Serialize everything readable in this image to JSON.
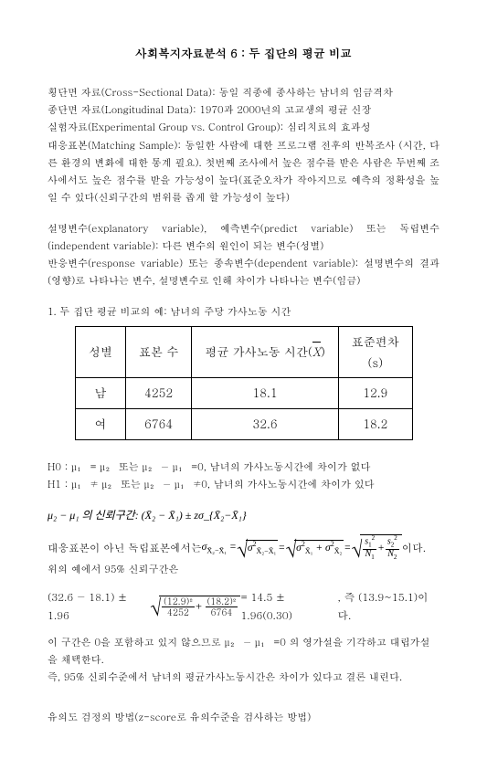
{
  "title": "사회복지자료분석 6 : 두 집단의 평균 비교",
  "defs": {
    "cross": "횡단면 자료(Cross-Sectional Data): 동일 직종에 종사하는 남녀의 임금격차",
    "long": "종단면 자료(Longitudinal Data): 1970과 2000년의 고교생의 평균 신장",
    "exp": "실험자료(Experimental Group vs. Control Group): 심리치료의 효과성",
    "match": "대응표본(Matching Sample): 동일한 사람에 대한 프로그램 전후의 반복조사 (시간, 다른 환경의 변화에 대한 통계 필요). 첫번째 조사에서 높은 점수를 받은 사람은 두번째 조사에서도 높은 점수를 받을 가능성이 높다(표준오차가 작아지므로 예측의 정확성을 높일 수 있다(신뢰구간의 범위를 좁게 할 가능성이 높다)"
  },
  "vars": {
    "explan": "설명변수(explanatory variable), 예측변수(predict variable) 또는 독립변수(independent variable): 다른 변수의 원인이 되는 변수(성별)",
    "resp": "반응변수(response variable) 또는 종속변수(dependent variable): 설명변수의 결과(영향)로 나타나는 변수, 설명변수로 인해 차이가 나타나는 변수(임금)"
  },
  "section1": "1. 두 집단 평균 비교의 예: 남녀의 주당 가사노동 시간",
  "table": {
    "headers": {
      "col1": "성별",
      "col2": "표본 수",
      "col3_prefix": "평균 가사노동 시간(",
      "col3_suffix": ")",
      "col4": "표준편차\n(s)"
    },
    "rows": [
      {
        "g": "남",
        "n": "4252",
        "mean": "18.1",
        "sd": "12.9"
      },
      {
        "g": "여",
        "n": "6764",
        "mean": "32.6",
        "sd": "18.2"
      }
    ]
  },
  "h0": "H0 : μ₁ = μ₂ 또는 μ₂ − μ₁ =0, 남녀의 가사노동시간에 차이가 없다",
  "h1": "H1 : μ₁ ≠ μ₂ 또는 μ₂ − μ₁ ≠0, 남녀의 가사노동시간에 차이가 있다",
  "ci": {
    "lead": "μ₂ − μ₁ 의 신뢰구간:  (X̄₂ − X̄₁) ± zσ_{X̄₂−X̄₁}",
    "indep_lead": "대응표본이 아닌 독립표본에서는  ",
    "indep_tail": "  이다.",
    "ex_lead": "위의 예에서 95% 신뢰구간은",
    "calc_prefix": "(32.6 − 18.1) ± 1.96",
    "frac1_num": "(12.9)²",
    "frac1_den": "4252",
    "frac2_num": "(18.2)²",
    "frac2_den": "6764",
    "calc_mid": "= 14.5 ± 1.96(0.30)",
    "calc_suffix": ", 즉 (13.9~15.1)이다.",
    "concl1": "이 구간은 0을 포함하고 있지 않으므로 μ₂ − μ₁ =0 의 영가설을 기각하고 대립가설을 채택한다.",
    "concl2": "즉, 95% 신뢰수준에서 남녀의 평균가사노동시간은 차이가 있다고 결론 내린다."
  },
  "zscore": "유의도 검정의 방법(z-score로 유의수준을 검사하는 방법)"
}
